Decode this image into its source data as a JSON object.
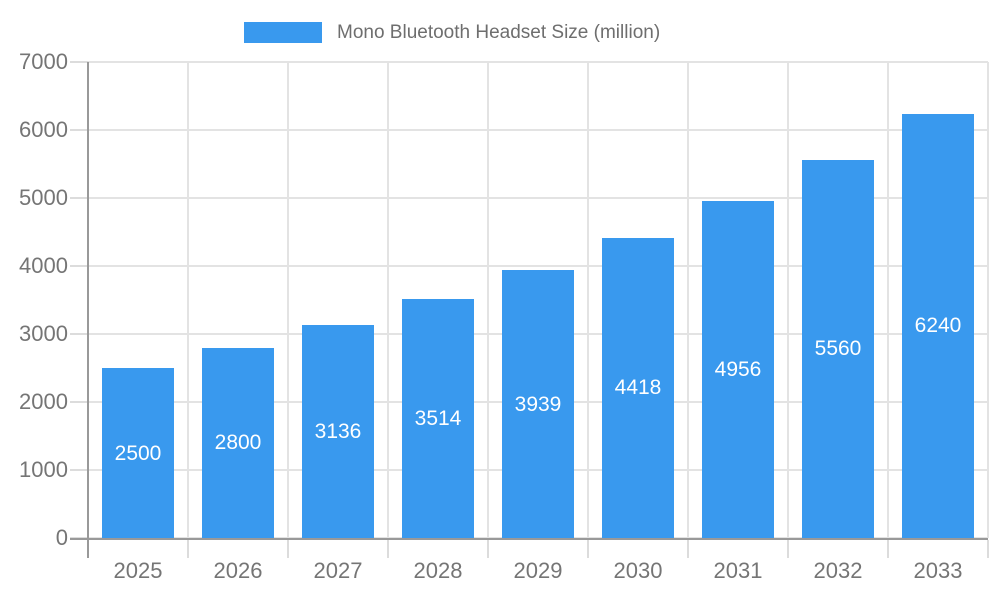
{
  "chart_data": {
    "type": "bar",
    "title": "",
    "legend": {
      "label": "Mono Bluetooth Headset Size (million)",
      "position": "top"
    },
    "categories": [
      "2025",
      "2026",
      "2027",
      "2028",
      "2029",
      "2030",
      "2031",
      "2032",
      "2033"
    ],
    "values": [
      2500,
      2800,
      3136,
      3514,
      3939,
      4418,
      4956,
      5560,
      6240
    ],
    "xlabel": "",
    "ylabel": "",
    "ylim": [
      0,
      7000
    ],
    "ytick_step": 1000,
    "yticks": [
      0,
      1000,
      2000,
      3000,
      4000,
      5000,
      6000,
      7000
    ],
    "grid": true,
    "value_labels_inside_bars": true,
    "colors": {
      "bar": "#3999EE",
      "value_label": "#FFFFFF",
      "axis_text": "#757575",
      "legend_text": "#6E6E6E",
      "gridline": "#E3E3E3",
      "tick": "#DCDCDC",
      "axis_line": "#999999",
      "background": "#FFFFFF"
    }
  }
}
